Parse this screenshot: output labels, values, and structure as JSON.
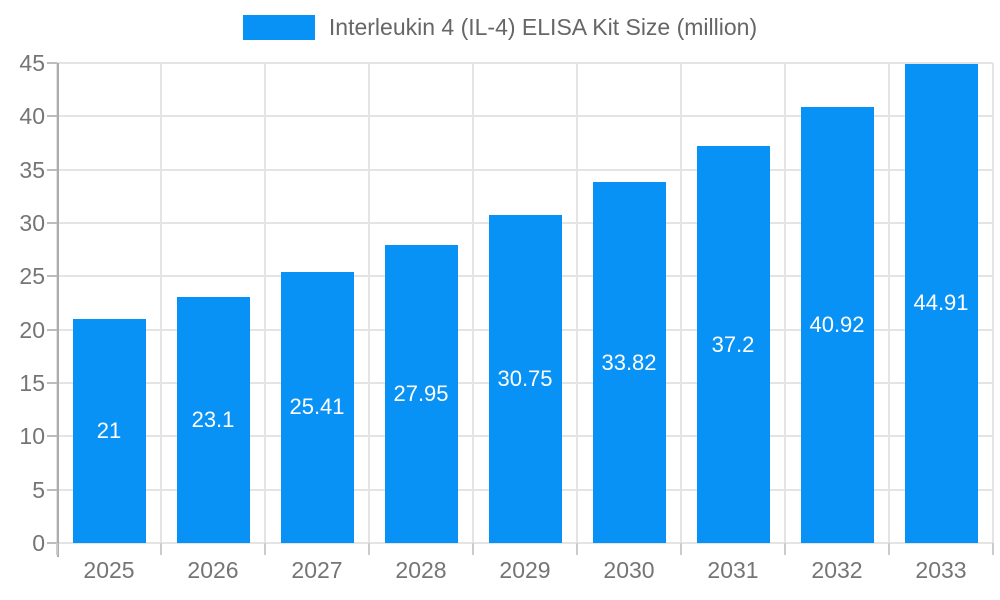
{
  "chart_data": {
    "type": "bar",
    "title": "Interleukin 4 (IL-4) ELISA Kit Size (million)",
    "legend": {
      "label": "Interleukin 4 (IL-4) ELISA Kit Size (million)",
      "position": "top"
    },
    "categories": [
      "2025",
      "2026",
      "2027",
      "2028",
      "2029",
      "2030",
      "2031",
      "2032",
      "2033"
    ],
    "values": [
      21,
      23.1,
      25.41,
      27.95,
      30.75,
      33.82,
      37.2,
      40.92,
      44.91
    ],
    "xlabel": "",
    "ylabel": "",
    "ylim": [
      0,
      45
    ],
    "ytick_step": 5,
    "yticks": [
      0,
      5,
      10,
      15,
      20,
      25,
      30,
      35,
      40,
      45
    ],
    "grid": "horizontal-and-vertical",
    "value_labels_shown": true,
    "colors": {
      "bar": "#0892f5",
      "bar_value_text": "#ffffff",
      "legend_text": "#666666",
      "axis_text": "#757575",
      "gridline": "#e4e4e4",
      "axis_line": "#acacac"
    }
  }
}
